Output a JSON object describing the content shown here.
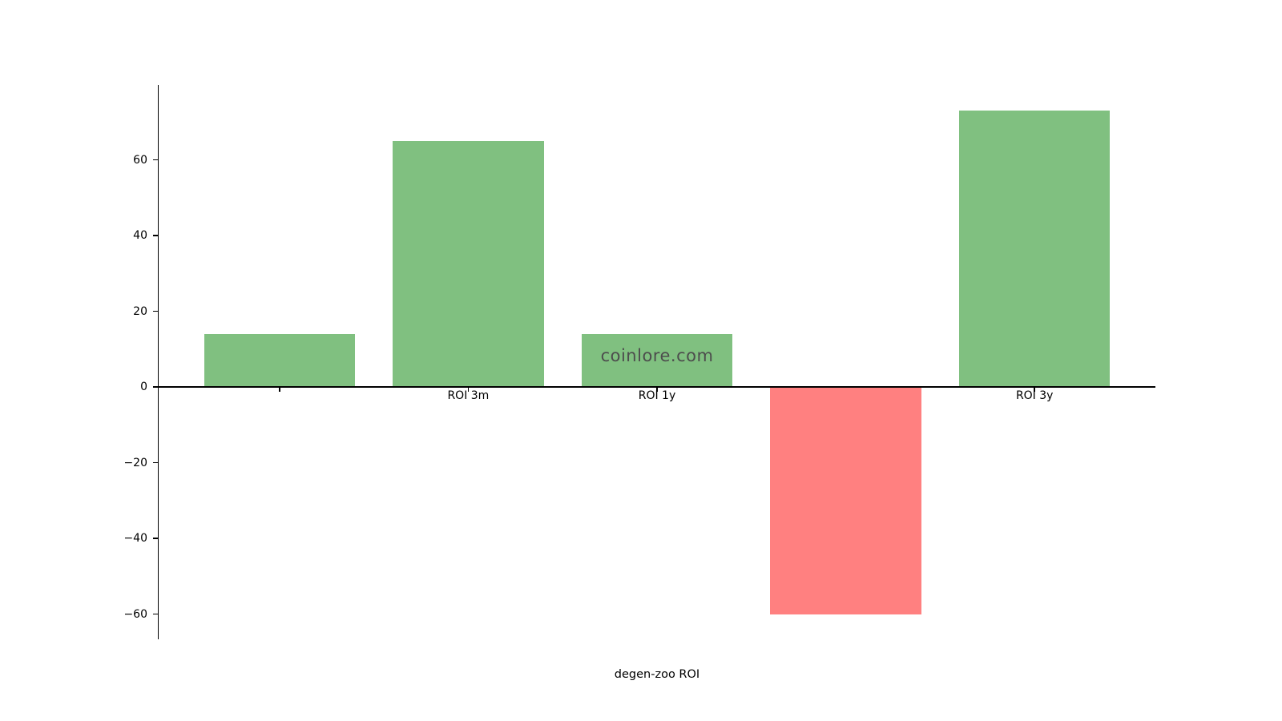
{
  "watermark": {
    "text": "coinlore.com",
    "color": "#4d4d4d"
  },
  "chart_data": {
    "type": "bar",
    "title": "",
    "xlabel": "degen-zoo ROI",
    "ylabel": "",
    "categories": [
      "",
      "ROI 3m",
      "ROI 1y",
      "",
      "ROI 3y"
    ],
    "values": [
      14,
      65,
      14,
      -60,
      73
    ],
    "bar_colors": [
      "#80c080",
      "#80c080",
      "#80c080",
      "#ff8080",
      "#80c080"
    ],
    "positive_color": "#80c080",
    "negative_color": "#ff8080",
    "yticks": [
      60,
      40,
      20,
      0,
      -20,
      -40,
      -60
    ],
    "ylim": [
      -66.7,
      79.7
    ],
    "grid": false,
    "legend": "none",
    "axis_color": "#000000",
    "text_color": "#000000",
    "notes_visible": "fourth bar tick label hidden behind negative bar; first category tick has no label"
  }
}
